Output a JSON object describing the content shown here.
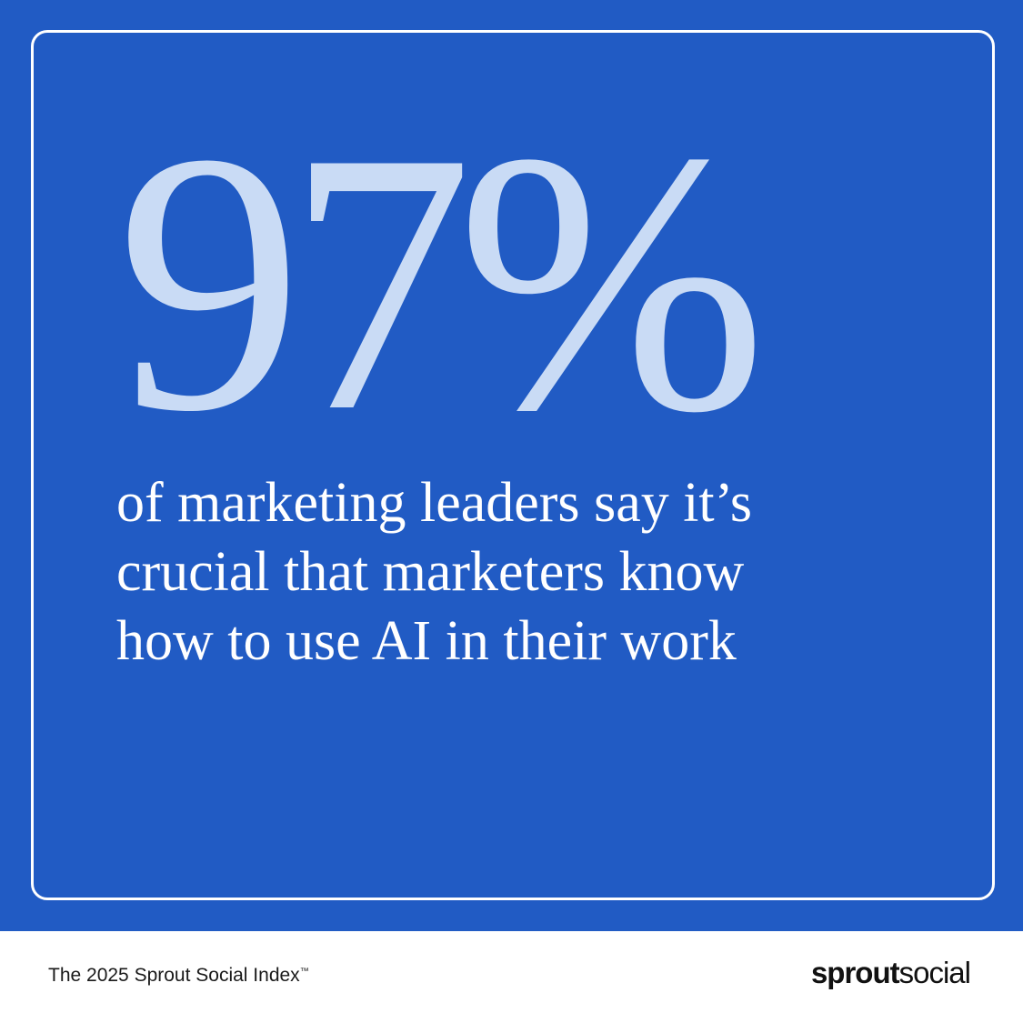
{
  "colors": {
    "background": "#215BC4",
    "stat": "#C9DBF5",
    "text": "#FFFFFF",
    "footer": "#FFFFFF"
  },
  "stat": {
    "value": "97%"
  },
  "statement": {
    "lines": [
      "of marketing leaders say it’s",
      "crucial that marketers know",
      "how to use AI in their work"
    ]
  },
  "footer": {
    "source": "The 2025 Sprout Social Index",
    "trademark": "™",
    "logo_bold": "sprout",
    "logo_light": "social"
  }
}
